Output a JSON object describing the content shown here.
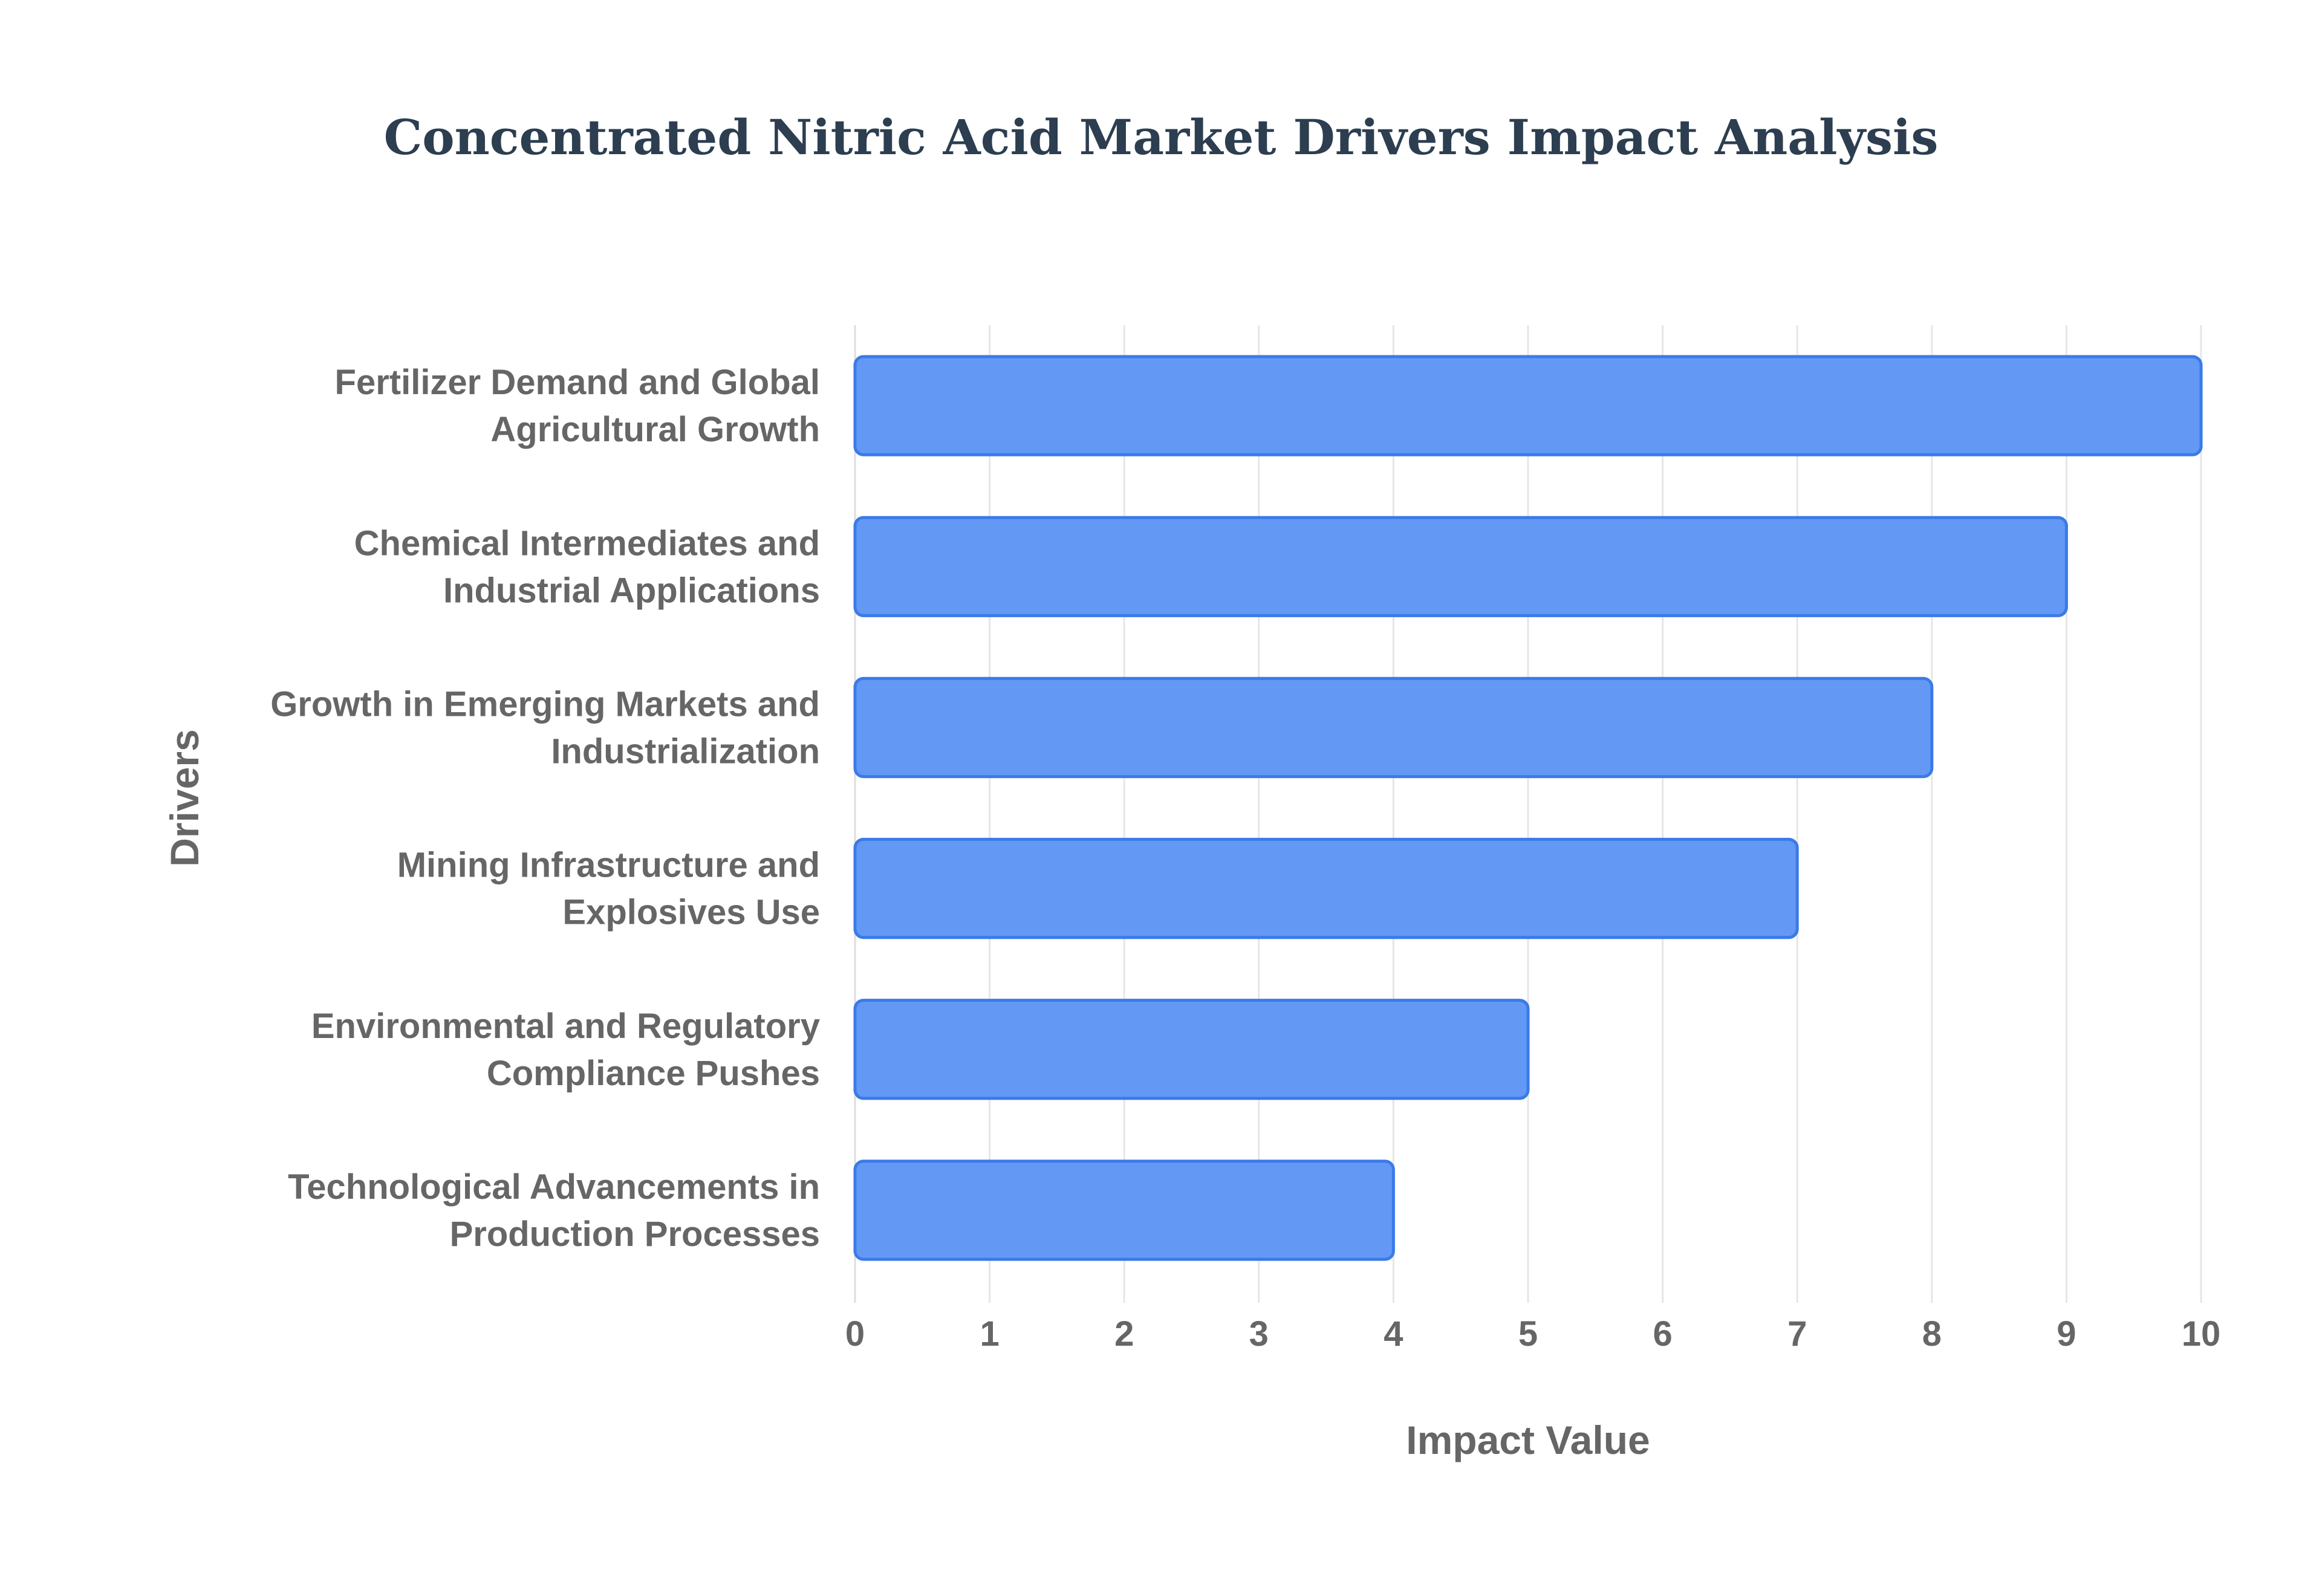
{
  "chart_data": {
    "type": "bar",
    "orientation": "horizontal",
    "title": "Concentrated Nitric Acid Market Drivers Impact Analysis",
    "xlabel": "Impact Value",
    "ylabel": "Drivers",
    "xlim": [
      0,
      10
    ],
    "x_ticks": [
      "0",
      "1",
      "2",
      "3",
      "4",
      "5",
      "6",
      "7",
      "8",
      "9",
      "10"
    ],
    "grid": true,
    "legend": "none",
    "categories": [
      [
        "Fertilizer Demand and Global",
        "Agricultural Growth"
      ],
      [
        "Chemical Intermediates and",
        "Industrial Applications"
      ],
      [
        "Growth in Emerging Markets and",
        "Industrialization"
      ],
      [
        "Mining Infrastructure and",
        "Explosives Use"
      ],
      [
        "Environmental and Regulatory",
        "Compliance Pushes"
      ],
      [
        "Technological Advancements in",
        "Production Processes"
      ]
    ],
    "values": [
      10,
      9,
      8,
      7,
      5,
      4
    ],
    "colors": {
      "bar_fill": "#6399f5",
      "bar_stroke": "#3b7ae8",
      "title": "#2c3e50",
      "text": "#666666",
      "grid": "#e6e6e6"
    }
  }
}
